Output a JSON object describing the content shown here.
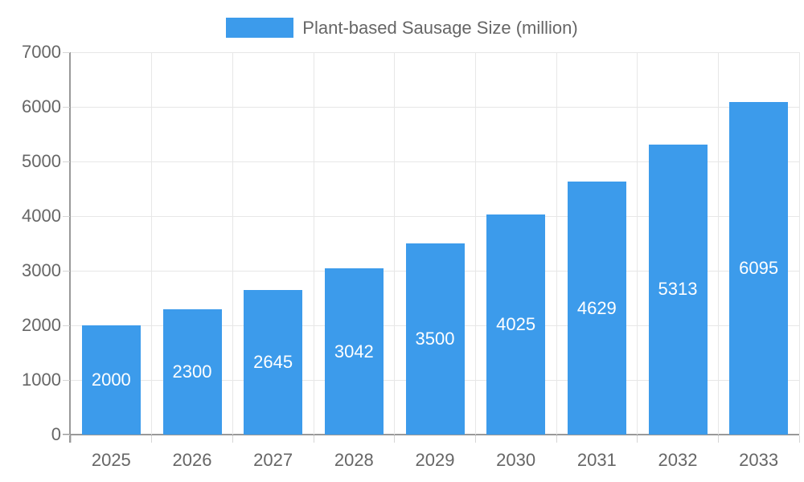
{
  "chart_data": {
    "type": "bar",
    "title": "Plant-based Sausage Size (million)",
    "categories": [
      "2025",
      "2026",
      "2027",
      "2028",
      "2029",
      "2030",
      "2031",
      "2032",
      "2033"
    ],
    "values": [
      2000,
      2300,
      2645,
      3042,
      3500,
      4025,
      4629,
      5313,
      6095
    ],
    "bar_labels": [
      "2000",
      "2300",
      "2645",
      "3042",
      "3500",
      "4025",
      "4629",
      "5313",
      "6095"
    ],
    "xlabel": "",
    "ylabel": "",
    "ylim": [
      0,
      7000
    ],
    "yticks": [
      0,
      1000,
      2000,
      3000,
      4000,
      5000,
      6000,
      7000
    ],
    "grid": true,
    "legend_position": "top",
    "bar_color": "#3C9BEB",
    "bar_label_color": "#FFFFFF",
    "axis_label_color": "#666666",
    "axis_line_color": "#999999",
    "gridline_color": "#E7E7E7",
    "tick_color": "#D6D6D6",
    "background_color": "#FFFFFF"
  }
}
